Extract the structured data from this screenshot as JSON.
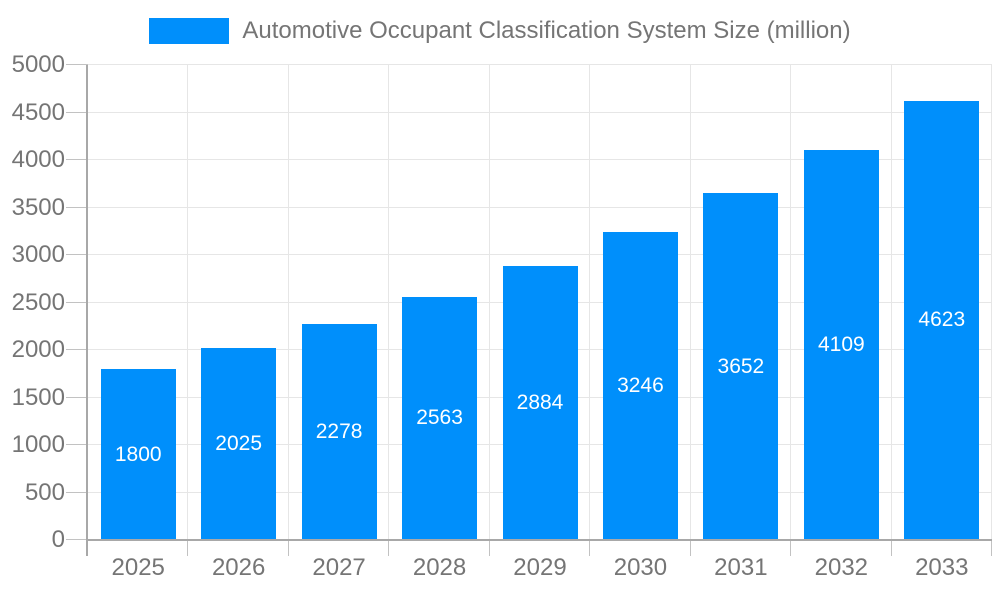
{
  "chart_data": {
    "type": "bar",
    "title": "",
    "legend": {
      "label": "Automotive Occupant Classification System Size (million)",
      "position": "top"
    },
    "categories": [
      "2025",
      "2026",
      "2027",
      "2028",
      "2029",
      "2030",
      "2031",
      "2032",
      "2033"
    ],
    "series": [
      {
        "name": "Automotive Occupant Classification System Size (million)",
        "values": [
          1800,
          2025,
          2278,
          2563,
          2884,
          3246,
          3652,
          4109,
          4623
        ]
      }
    ],
    "bar_labels": [
      "1800",
      "2025",
      "2278",
      "2563",
      "2884",
      "3246",
      "3652",
      "4109",
      "4623"
    ],
    "xlabel": "",
    "ylabel": "",
    "ylim": [
      0,
      5000
    ],
    "ytick_step": 500,
    "ytick_labels": [
      "0",
      "500",
      "1000",
      "1500",
      "2000",
      "2500",
      "3000",
      "3500",
      "4000",
      "4500",
      "5000"
    ],
    "grid": true,
    "colors": {
      "bar": "#008FFB",
      "bar_label": "#ffffff",
      "axis_text": "#757575",
      "grid_line": "#e6e6e6",
      "axis_line": "#a8a8a8",
      "tick": "#c2c2c2",
      "background": "#ffffff"
    }
  }
}
